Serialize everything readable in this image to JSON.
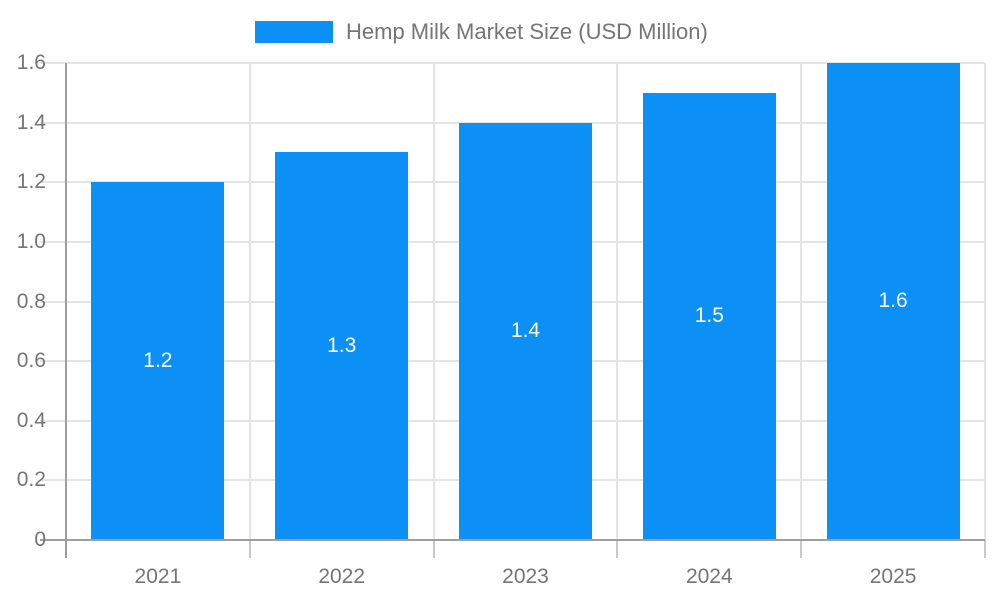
{
  "chart_data": {
    "type": "bar",
    "title": "Hemp Milk Market Size (USD Million)",
    "legend": {
      "position": "top",
      "entries": [
        "Hemp Milk Market Size (USD Million)"
      ]
    },
    "categories": [
      "2021",
      "2022",
      "2023",
      "2024",
      "2025"
    ],
    "values": [
      1.2,
      1.3,
      1.4,
      1.5,
      1.6
    ],
    "bar_labels": [
      "1.2",
      "1.3",
      "1.4",
      "1.5",
      "1.6"
    ],
    "xlabel": "",
    "ylabel": "",
    "ylim": [
      0,
      1.6
    ],
    "ytick_values": [
      0,
      0.2,
      0.4,
      0.6,
      0.8,
      1.0,
      1.2,
      1.4,
      1.6
    ],
    "ytick_labels": [
      "0",
      "0.2",
      "0.4",
      "0.6",
      "0.8",
      "1.0",
      "1.2",
      "1.4",
      "1.6"
    ],
    "grid": true,
    "colors": {
      "bar": "#0C90F5",
      "grid": "#E4E4E4",
      "axis": "#9E9E9E",
      "tick": "#C9C9C9",
      "tick_text": "#757575",
      "bar_label_text": "#FFFFFF",
      "background": "#FFFFFF"
    }
  }
}
